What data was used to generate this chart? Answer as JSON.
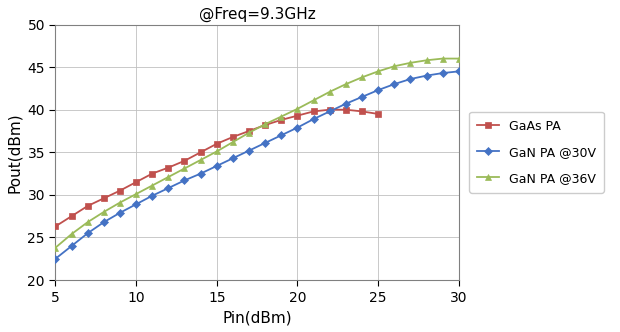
{
  "title": "@Freq=9.3GHz",
  "xlabel": "Pin(dBm)",
  "ylabel": "Pout(dBm)",
  "xlim": [
    5,
    30
  ],
  "ylim": [
    20,
    50
  ],
  "xticks": [
    5,
    10,
    15,
    20,
    25,
    30
  ],
  "yticks": [
    20,
    25,
    30,
    35,
    40,
    45,
    50
  ],
  "gaas_x": [
    5,
    6,
    7,
    8,
    9,
    10,
    11,
    12,
    13,
    14,
    15,
    16,
    17,
    18,
    19,
    20,
    21,
    22,
    23,
    24,
    25
  ],
  "gaas_y": [
    26.3,
    27.5,
    28.7,
    29.6,
    30.5,
    31.5,
    32.5,
    33.2,
    34.0,
    35.0,
    36.0,
    36.8,
    37.5,
    38.2,
    38.8,
    39.3,
    39.8,
    40.0,
    40.0,
    39.8,
    39.5
  ],
  "gan30_x": [
    5,
    6,
    7,
    8,
    9,
    10,
    11,
    12,
    13,
    14,
    15,
    16,
    17,
    18,
    19,
    20,
    21,
    22,
    23,
    24,
    25,
    26,
    27,
    28,
    29,
    30
  ],
  "gan30_y": [
    22.5,
    24.0,
    25.5,
    26.8,
    27.9,
    28.9,
    29.9,
    30.8,
    31.7,
    32.5,
    33.4,
    34.3,
    35.2,
    36.1,
    37.0,
    37.9,
    38.9,
    39.8,
    40.7,
    41.5,
    42.3,
    43.0,
    43.6,
    44.0,
    44.3,
    44.5
  ],
  "gan36_x": [
    5,
    6,
    7,
    8,
    9,
    10,
    11,
    12,
    13,
    14,
    15,
    16,
    17,
    18,
    19,
    20,
    21,
    22,
    23,
    24,
    25,
    26,
    27,
    28,
    29,
    30
  ],
  "gan36_y": [
    23.8,
    25.4,
    26.8,
    28.0,
    29.1,
    30.1,
    31.1,
    32.1,
    33.1,
    34.1,
    35.1,
    36.2,
    37.3,
    38.3,
    39.2,
    40.1,
    41.1,
    42.1,
    43.0,
    43.8,
    44.5,
    45.1,
    45.5,
    45.8,
    46.0,
    46.0
  ],
  "gaas_color": "#C0504D",
  "gan30_color": "#4472C4",
  "gan36_color": "#9BBB59",
  "legend_labels": [
    "GaAs PA",
    "GaN PA @30V",
    "GaN PA @36V"
  ],
  "grid_color": "#C0C0C0",
  "bg_color": "#FFFFFF"
}
